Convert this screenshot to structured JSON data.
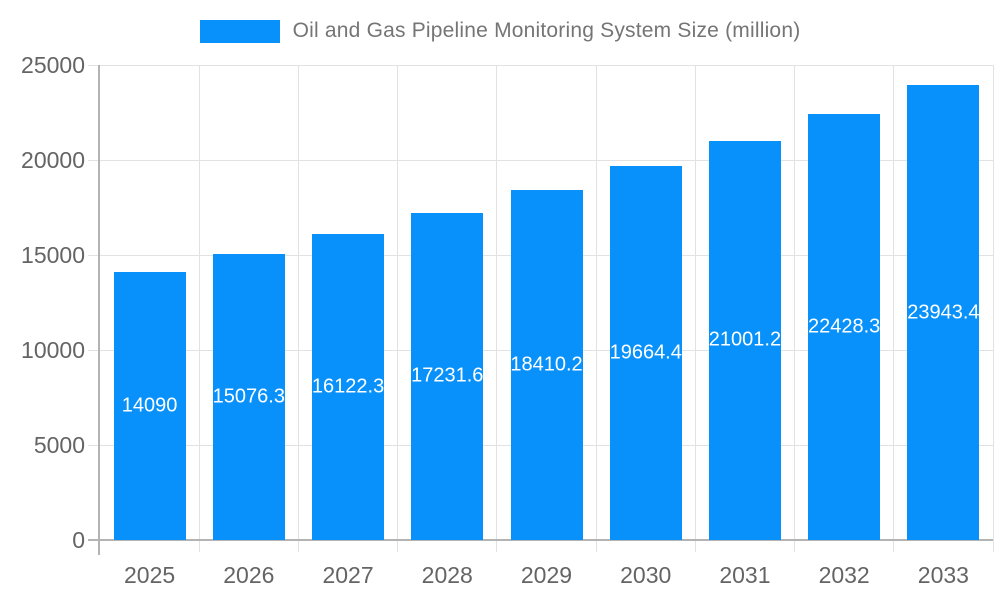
{
  "legend": {
    "label": "Oil and Gas Pipeline Monitoring System Size (million)"
  },
  "chart_data": {
    "type": "bar",
    "title": "Oil and Gas Pipeline Monitoring System Size (million)",
    "categories": [
      "2025",
      "2026",
      "2027",
      "2028",
      "2029",
      "2030",
      "2031",
      "2032",
      "2033"
    ],
    "values": [
      14090,
      15076.3,
      16122.3,
      17231.6,
      18410.2,
      19664.4,
      21001.2,
      22428.3,
      23943.4
    ],
    "bar_labels": [
      "14090",
      "15076.3",
      "16122.3",
      "17231.6",
      "18410.2",
      "19664.4",
      "21001.2",
      "22428.3",
      "23943.4"
    ],
    "xlabel": "",
    "ylabel": "",
    "ylim": [
      0,
      25000
    ],
    "yticks": [
      0,
      5000,
      10000,
      15000,
      20000,
      25000
    ],
    "ytick_labels": [
      "0",
      "5000",
      "10000",
      "15000",
      "20000",
      "25000"
    ],
    "grid": true,
    "legend_position": "top",
    "colors": {
      "bar": "#0991fb",
      "gridline": "#e2e2e2",
      "axis_line": "#b3b3b3",
      "axis_text": "#646464",
      "legend_text": "#757575",
      "data_label_text": "#ffffff",
      "background": "#ffffff"
    }
  }
}
